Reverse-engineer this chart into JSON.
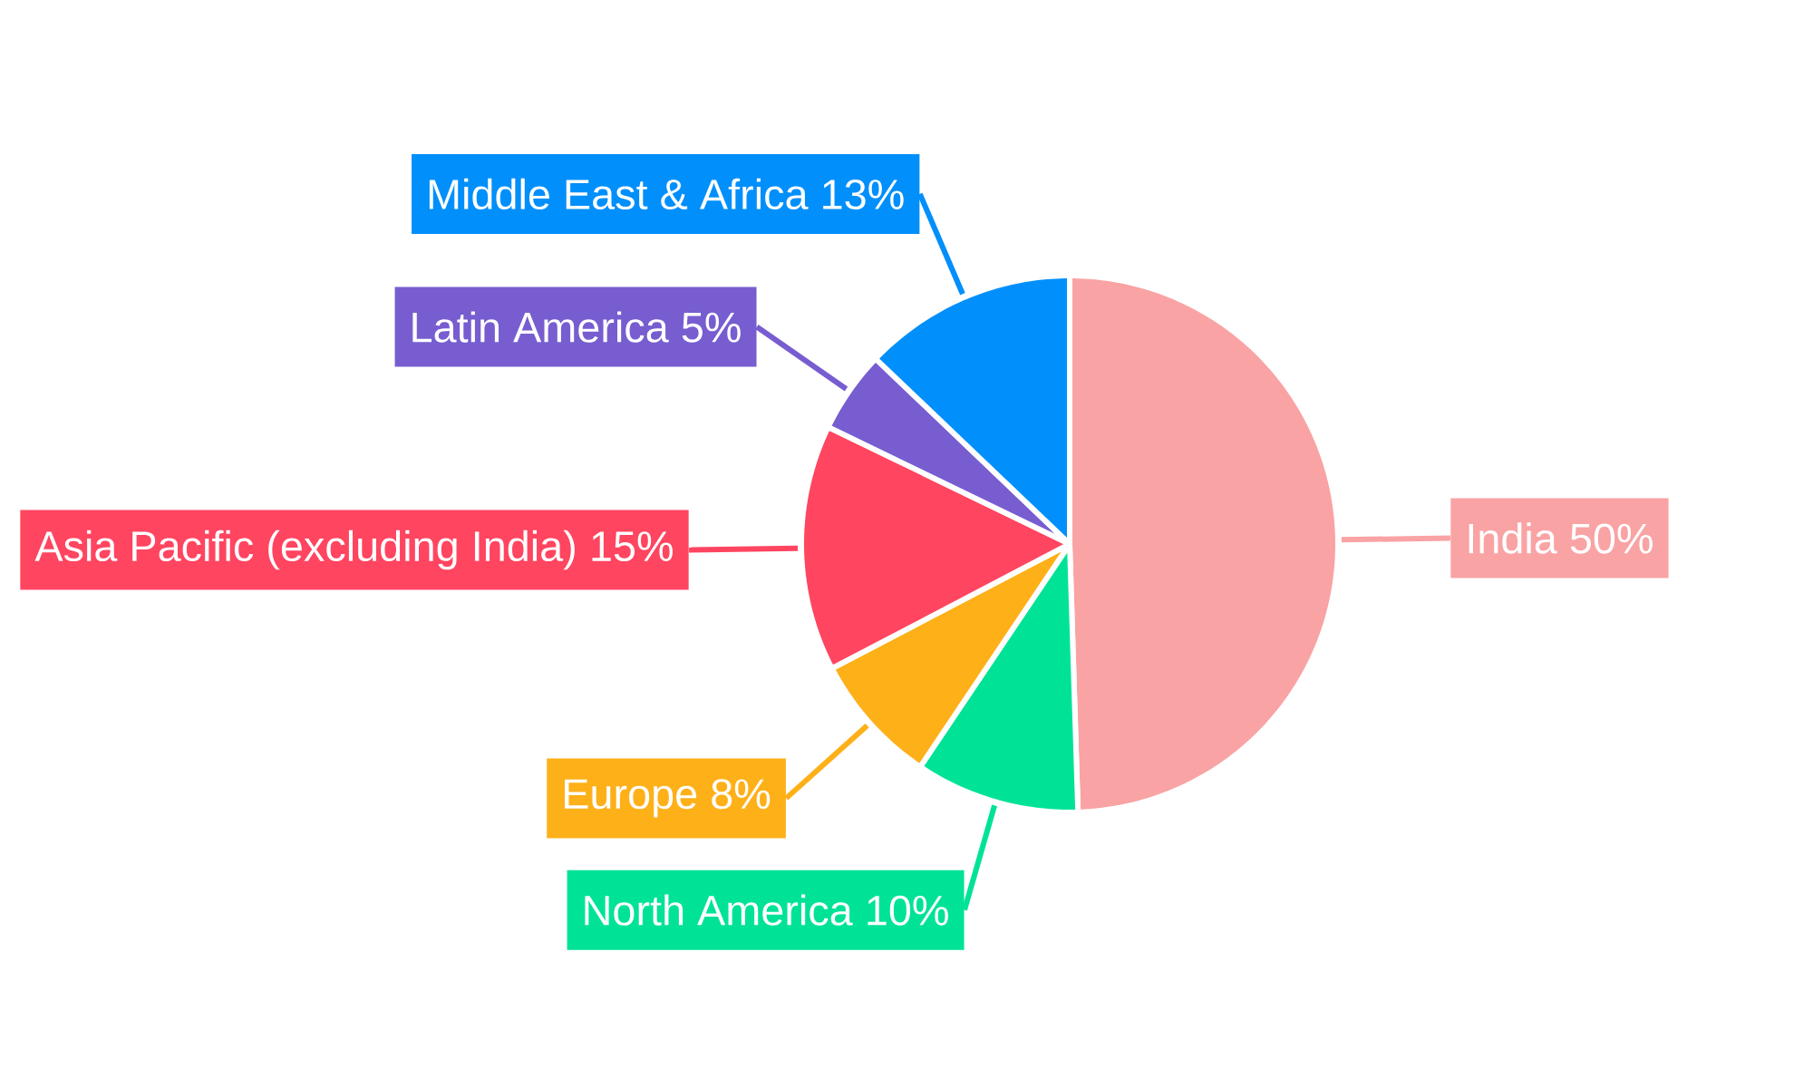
{
  "chart_data": {
    "type": "pie",
    "categories": [
      "India",
      "North America",
      "Europe",
      "Asia Pacific (excluding India)",
      "Latin America",
      "Middle East & Africa"
    ],
    "values": [
      50,
      10,
      8,
      15,
      5,
      13
    ],
    "value_labels": [
      "50%",
      "10%",
      "8%",
      "15%",
      "5%",
      "13%"
    ],
    "colors": [
      "#f9a3a4",
      "#00e396",
      "#feb019",
      "#ff4560",
      "#775dd0",
      "#008ffb"
    ]
  }
}
